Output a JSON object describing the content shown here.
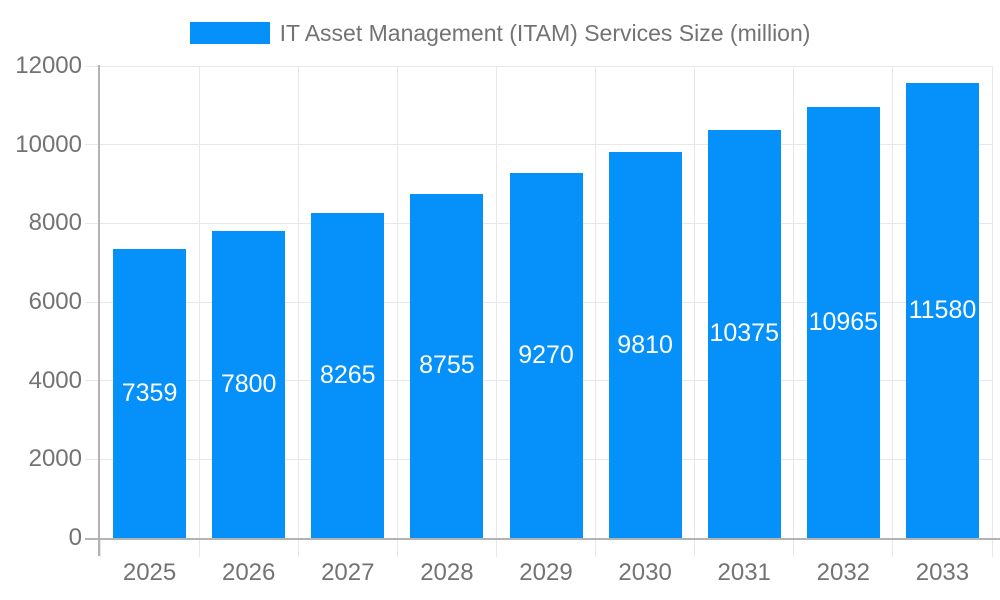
{
  "chart_data": {
    "type": "bar",
    "title": "IT Asset Management (ITAM) Services Size (million)",
    "legend": [
      "IT Asset Management (ITAM) Services Size (million)"
    ],
    "legend_position": "top",
    "categories": [
      "2025",
      "2026",
      "2027",
      "2028",
      "2029",
      "2030",
      "2031",
      "2032",
      "2033"
    ],
    "values": [
      7359,
      7800,
      8265,
      8755,
      9270,
      9810,
      10375,
      10965,
      11580
    ],
    "xlabel": "",
    "ylabel": "",
    "ylim": [
      0,
      12000
    ],
    "ytick_step": 2000,
    "yticks": [
      0,
      2000,
      4000,
      6000,
      8000,
      10000,
      12000
    ],
    "grid": true,
    "bar_value_labels_visible": true
  },
  "colors": {
    "bar": "#0590fa",
    "grid_line": "#e8e8e8",
    "axis_line": "#b3b3b3",
    "tick_text": "#737373",
    "legend_text": "#737373",
    "bar_label_text": "#ffffff",
    "background": "#ffffff"
  }
}
